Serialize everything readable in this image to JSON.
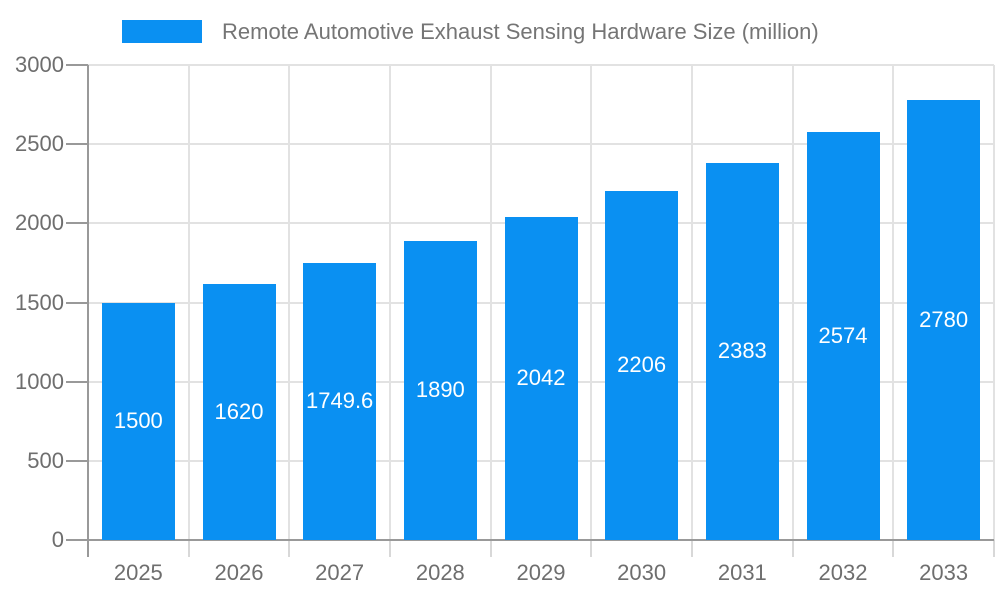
{
  "chart_data": {
    "type": "bar",
    "title": "Remote Automotive Exhaust Sensing Hardware Size (million)",
    "categories": [
      "2025",
      "2026",
      "2027",
      "2028",
      "2029",
      "2030",
      "2031",
      "2032",
      "2033"
    ],
    "values": [
      1500,
      1620,
      1749.6,
      1890,
      2042,
      2206,
      2383,
      2574,
      2780
    ],
    "value_labels": [
      "1500",
      "1620",
      "1749.6",
      "1890",
      "2042",
      "2206",
      "2383",
      "2574",
      "2780"
    ],
    "ytick_labels": [
      "0",
      "500",
      "1000",
      "1500",
      "2000",
      "2500",
      "3000"
    ],
    "yticks": [
      0,
      500,
      1000,
      1500,
      2000,
      2500,
      3000
    ],
    "ylim": [
      0,
      3000
    ],
    "xlabel": "",
    "ylabel": "",
    "grid": true,
    "legend_position": "top",
    "colors": {
      "bar": "#0a90f2",
      "value_label": "#ffffff",
      "axis_line": "#999999",
      "gridline": "#e2e2e2",
      "minor_tick": "#d8d8d8",
      "tick_label": "#6e6e6e",
      "legend_text": "#757575"
    }
  }
}
